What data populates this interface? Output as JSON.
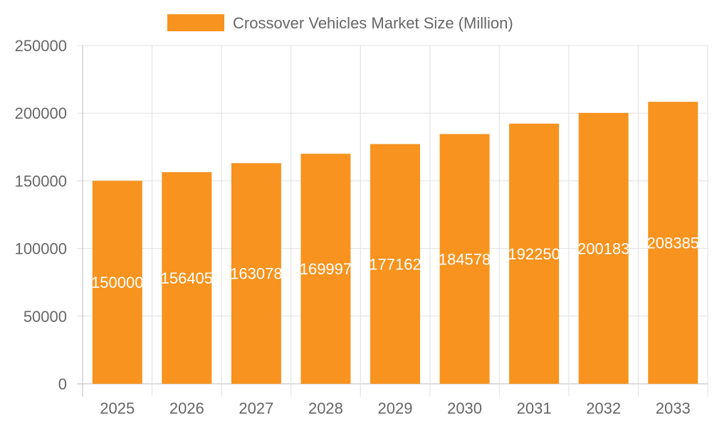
{
  "chart_data": {
    "type": "bar",
    "categories": [
      "2025",
      "2026",
      "2027",
      "2028",
      "2029",
      "2030",
      "2031",
      "2032",
      "2033"
    ],
    "series": [
      {
        "name": "Crossover Vehicles Market Size (Million)",
        "values": [
          150000,
          156405,
          163078,
          169997,
          177162,
          184578,
          192250,
          200183,
          208385
        ],
        "color": "#f7931e"
      }
    ],
    "ylim": [
      0,
      250000
    ],
    "yticks": [
      0,
      50000,
      100000,
      150000,
      200000,
      250000
    ],
    "grid": true,
    "legend": "top",
    "data_labels": true
  }
}
